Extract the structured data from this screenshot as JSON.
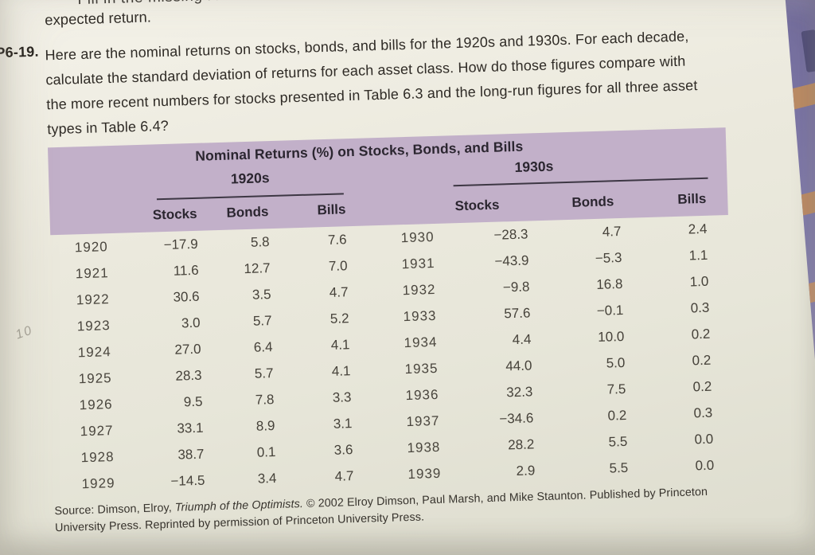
{
  "page": {
    "clipped_top_line": "Fill in the missing retur",
    "intro_line": "expected return.",
    "margin_note": "10",
    "problem": {
      "number": "P6-19.",
      "lines": [
        "Here are the nominal returns on stocks, bonds, and bills for the 1920s and 1930s. For each decade,",
        "calculate the standard deviation of returns for each asset class. How do those figures compare with",
        "the more recent numbers for stocks presented in Table 6.3 and the long-run figures for all three asset",
        "types in Table 6.4?"
      ]
    }
  },
  "table": {
    "title": "Nominal Returns (%) on Stocks, Bonds, and Bills",
    "left": {
      "group_label": "1920s",
      "columns": [
        "Stocks",
        "Bonds",
        "Bills"
      ],
      "rows": [
        [
          "1920",
          "−17.9",
          "5.8",
          "7.6"
        ],
        [
          "1921",
          "11.6",
          "12.7",
          "7.0"
        ],
        [
          "1922",
          "30.6",
          "3.5",
          "4.7"
        ],
        [
          "1923",
          "3.0",
          "5.7",
          "5.2"
        ],
        [
          "1924",
          "27.0",
          "6.4",
          "4.1"
        ],
        [
          "1925",
          "28.3",
          "5.7",
          "4.1"
        ],
        [
          "1926",
          "9.5",
          "7.8",
          "3.3"
        ],
        [
          "1927",
          "33.1",
          "8.9",
          "3.1"
        ],
        [
          "1928",
          "38.7",
          "0.1",
          "3.6"
        ],
        [
          "1929",
          "−14.5",
          "3.4",
          "4.7"
        ]
      ]
    },
    "right": {
      "group_label": "1930s",
      "columns": [
        "Stocks",
        "Bonds",
        "Bills"
      ],
      "rows": [
        [
          "1930",
          "−28.3",
          "4.7",
          "2.4"
        ],
        [
          "1931",
          "−43.9",
          "−5.3",
          "1.1"
        ],
        [
          "1932",
          "−9.8",
          "16.8",
          "1.0"
        ],
        [
          "1933",
          "57.6",
          "−0.1",
          "0.3"
        ],
        [
          "1934",
          "4.4",
          "10.0",
          "0.2"
        ],
        [
          "1935",
          "44.0",
          "5.0",
          "0.2"
        ],
        [
          "1936",
          "32.3",
          "7.5",
          "0.2"
        ],
        [
          "1937",
          "−34.6",
          "0.2",
          "0.3"
        ],
        [
          "1938",
          "28.2",
          "5.5",
          "0.0"
        ],
        [
          "1939",
          "2.9",
          "5.5",
          "0.0"
        ]
      ]
    }
  },
  "source": {
    "line1_prefix": "Source: Dimson, Elroy, ",
    "line1_italic": "Triumph of the Optimists.",
    "line1_suffix": " © 2002 Elroy Dimson, Paul Marsh, and Mike Staunton. Published by Princeton",
    "line2": "University Press. Reprinted by permission of Princeton University Press."
  },
  "colors": {
    "page": "#ebe9dd",
    "table_header_band": "#c2b0c9",
    "ink": "#2f2b26",
    "table_numbers": "#46423a",
    "desk": "#7f79a8",
    "desk_stripe": "#bf8d62"
  }
}
